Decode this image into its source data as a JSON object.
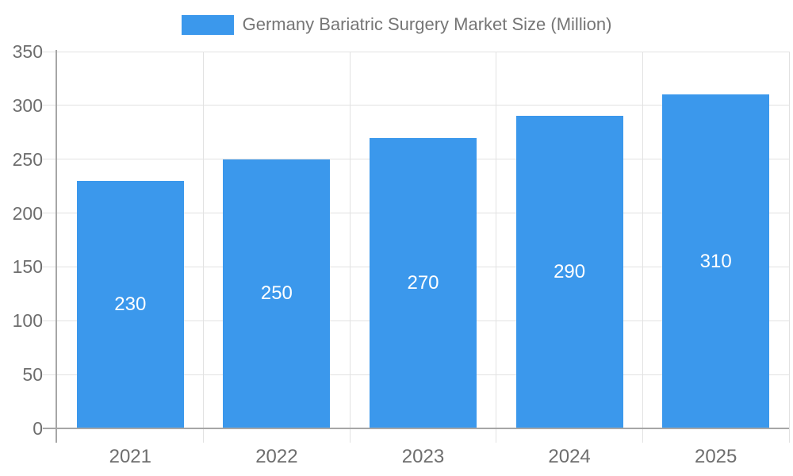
{
  "chart_data": {
    "type": "bar",
    "title": "Germany Bariatric Surgery Market Size (Million)",
    "legend": {
      "position": "top",
      "label": "Germany Bariatric Surgery Market Size (Million)"
    },
    "categories": [
      "2021",
      "2022",
      "2023",
      "2024",
      "2025"
    ],
    "values": [
      230,
      250,
      270,
      290,
      310
    ],
    "bar_value_labels": [
      "230",
      "250",
      "270",
      "290",
      "310"
    ],
    "xlabel": "",
    "ylabel": "",
    "ylim": [
      0,
      350
    ],
    "ytick_step": 50,
    "yticks": [
      "0",
      "50",
      "100",
      "150",
      "200",
      "250",
      "300",
      "350"
    ],
    "grid": true
  },
  "colors": {
    "bar": "#3b98ec",
    "bar_label_text": "#ffffff",
    "axis_line": "#a6a6a6",
    "grid_line": "#e2e2e2",
    "axis_text": "#6e6e6e",
    "legend_text": "#757575",
    "background": "#ffffff"
  }
}
